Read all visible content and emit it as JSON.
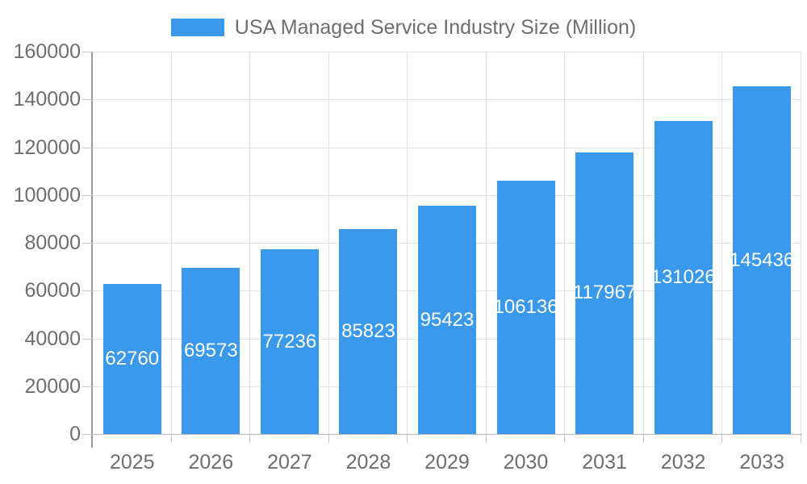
{
  "legend": {
    "label": "USA Managed Service Industry Size (Million)"
  },
  "chart_data": {
    "type": "bar",
    "title": "USA Managed Service Industry Size (Million)",
    "categories": [
      "2025",
      "2026",
      "2027",
      "2028",
      "2029",
      "2030",
      "2031",
      "2032",
      "2033"
    ],
    "values": [
      62760,
      69573,
      77236,
      85823,
      95423,
      106136,
      117967,
      131026,
      145436
    ],
    "series": [
      {
        "name": "USA Managed Service Industry Size (Million)",
        "values": [
          62760,
          69573,
          77236,
          85823,
          95423,
          106136,
          117967,
          131026,
          145436
        ]
      }
    ],
    "xlabel": "",
    "ylabel": "",
    "ylim": [
      0,
      160000
    ],
    "yticks": [
      0,
      20000,
      40000,
      60000,
      80000,
      100000,
      120000,
      140000,
      160000
    ],
    "grid": true,
    "legend_position": "top-center",
    "value_labels": "inside-middle-white"
  },
  "colors": {
    "bar": "#3b99ec",
    "value_label": "#ffffff",
    "axis_text": "#6e6e6e",
    "title_text": "#6e6e6e",
    "gridline": "#e3e3e3",
    "tick": "#c9c9c9",
    "baseline": "#b5b5b5",
    "axis_line": "#9a9a9a",
    "background": "#ffffff"
  }
}
